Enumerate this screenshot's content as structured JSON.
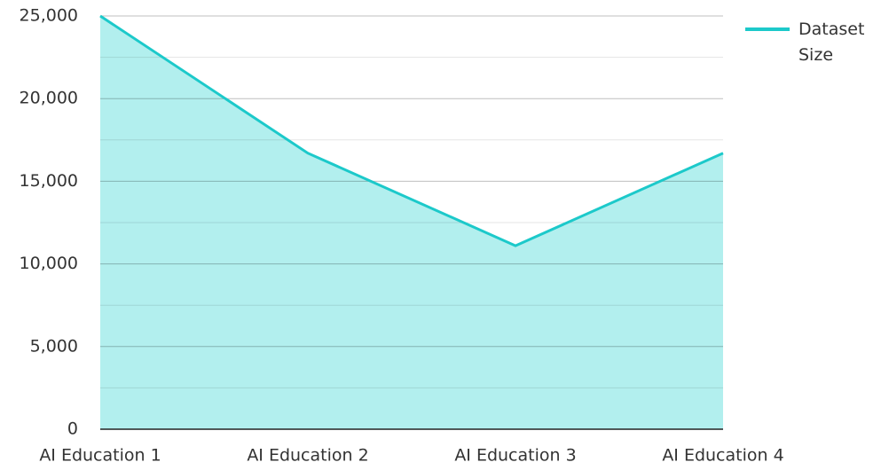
{
  "chart_data": {
    "type": "area",
    "categories": [
      "AI Education 1",
      "AI Education 2",
      "AI Education 3",
      "AI Education 4"
    ],
    "series": [
      {
        "name": "Dataset Size",
        "color": "#1cc9ca",
        "fill": "#b2efee",
        "values": [
          25000,
          16700,
          11100,
          16700
        ]
      }
    ],
    "ylim": [
      0,
      25000
    ],
    "yticks": [
      0,
      {
        "value": 5000,
        "label": "5,000"
      },
      {
        "value": 10000,
        "label": "10,000"
      },
      {
        "value": 15000,
        "label": "15,000"
      },
      {
        "value": 20000,
        "label": "20,000"
      },
      {
        "value": 25000,
        "label": "25,000"
      }
    ],
    "minor_yticks": [
      2500,
      7500,
      12500,
      17500,
      22500
    ],
    "grid": true,
    "legend": "top-right"
  }
}
